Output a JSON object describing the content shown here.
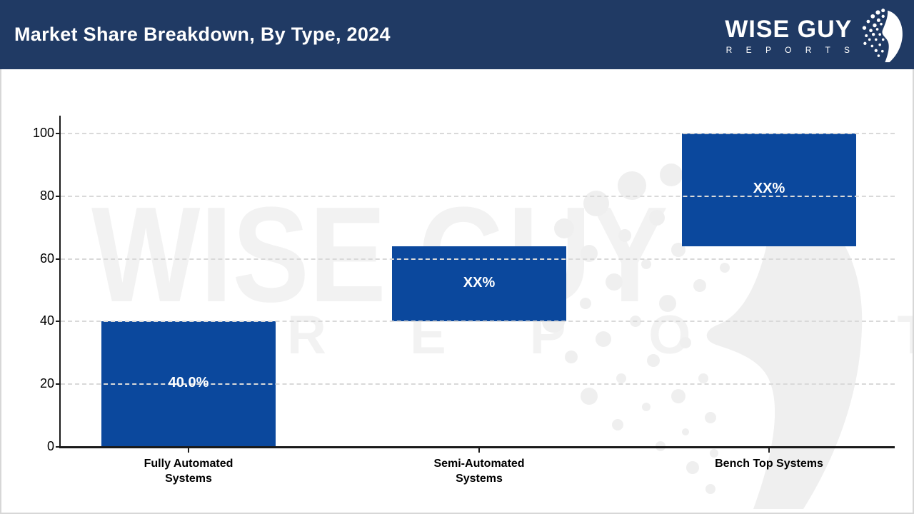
{
  "header": {
    "title": "Market Share Breakdown, By Type, 2024",
    "background_color": "#203a64",
    "logo": {
      "wordmark": "WISE GUY",
      "subtitle": "R E P O R T S"
    }
  },
  "watermark": {
    "wordmark": "WISE GUY",
    "subtitle": "R E P O R T S"
  },
  "chart_data": {
    "type": "bar",
    "variant": "floating-segments",
    "title": "Market Share Breakdown, By Type, 2024",
    "categories": [
      "Fully Automated\nSystems",
      "Semi-Automated\nSystems",
      "Bench Top Systems"
    ],
    "series": [
      {
        "name": "Fully Automated Systems",
        "start": 0,
        "end": 40,
        "label": "40.0%"
      },
      {
        "name": "Semi-Automated Systems",
        "start": 40,
        "end": 64,
        "label": "XX%"
      },
      {
        "name": "Bench Top Systems",
        "start": 64,
        "end": 100,
        "label": "XX%"
      }
    ],
    "xlabel": "",
    "ylabel": "",
    "y_ticks": [
      0,
      20,
      40,
      60,
      80,
      100
    ],
    "ylim": [
      0,
      107
    ],
    "grid": {
      "horizontal": true,
      "style": "dashed",
      "color": "#d9d9d9"
    },
    "bar_color": "#0b489d",
    "bar_label_color": "#ffffff",
    "legend": false
  }
}
